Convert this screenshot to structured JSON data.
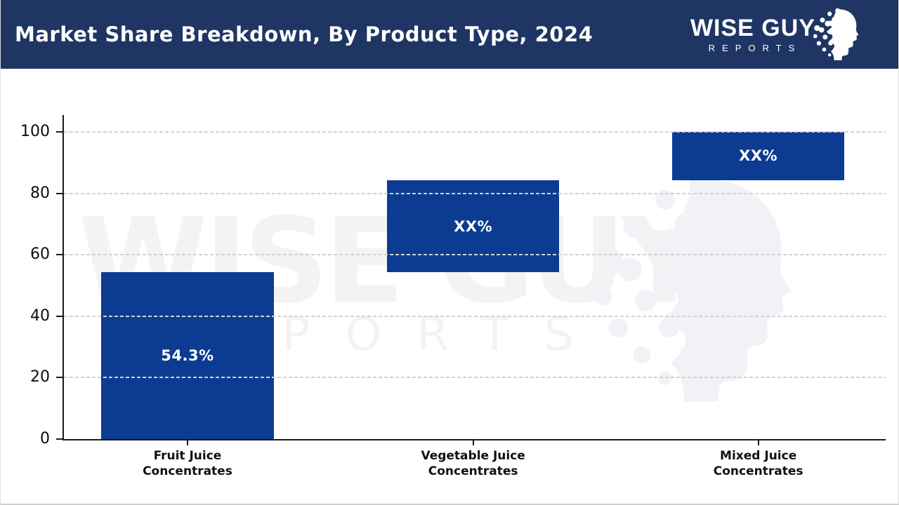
{
  "header": {
    "title": "Market Share Breakdown, By Product Type, 2024",
    "background_color": "#1f3564",
    "logo": {
      "line1": "WISE GUY",
      "line2": "REPORTS"
    }
  },
  "watermark": {
    "line1": "WISE GUY",
    "line2": "REPORTS"
  },
  "chart_data": {
    "type": "bar",
    "subtype": "waterfall",
    "title": "Market Share Breakdown, By Product Type, 2024",
    "categories": [
      [
        "Fruit Juice",
        "Concentrates"
      ],
      [
        "Vegetable Juice",
        "Concentrates"
      ],
      [
        "Mixed Juice",
        "Concentrates"
      ]
    ],
    "segments": [
      {
        "category": "Fruit Juice Concentrates",
        "start": 0,
        "end": 54.3,
        "label": "54.3%"
      },
      {
        "category": "Vegetable Juice Concentrates",
        "start": 54.3,
        "end": 84.3,
        "label": "XX%"
      },
      {
        "category": "Mixed Juice Concentrates",
        "start": 84.3,
        "end": 100,
        "label": "XX%"
      }
    ],
    "yticks": [
      0,
      20,
      40,
      60,
      80,
      100
    ],
    "ylim": [
      0,
      105.5
    ],
    "xlabel": "",
    "ylabel": "",
    "bar_color": "#0c3c91",
    "bar_centers_pct": [
      15.04,
      49.8,
      84.5
    ],
    "bar_width_pct": 21,
    "grid": "dashed-horizontal-over-bars",
    "legend": "none"
  }
}
